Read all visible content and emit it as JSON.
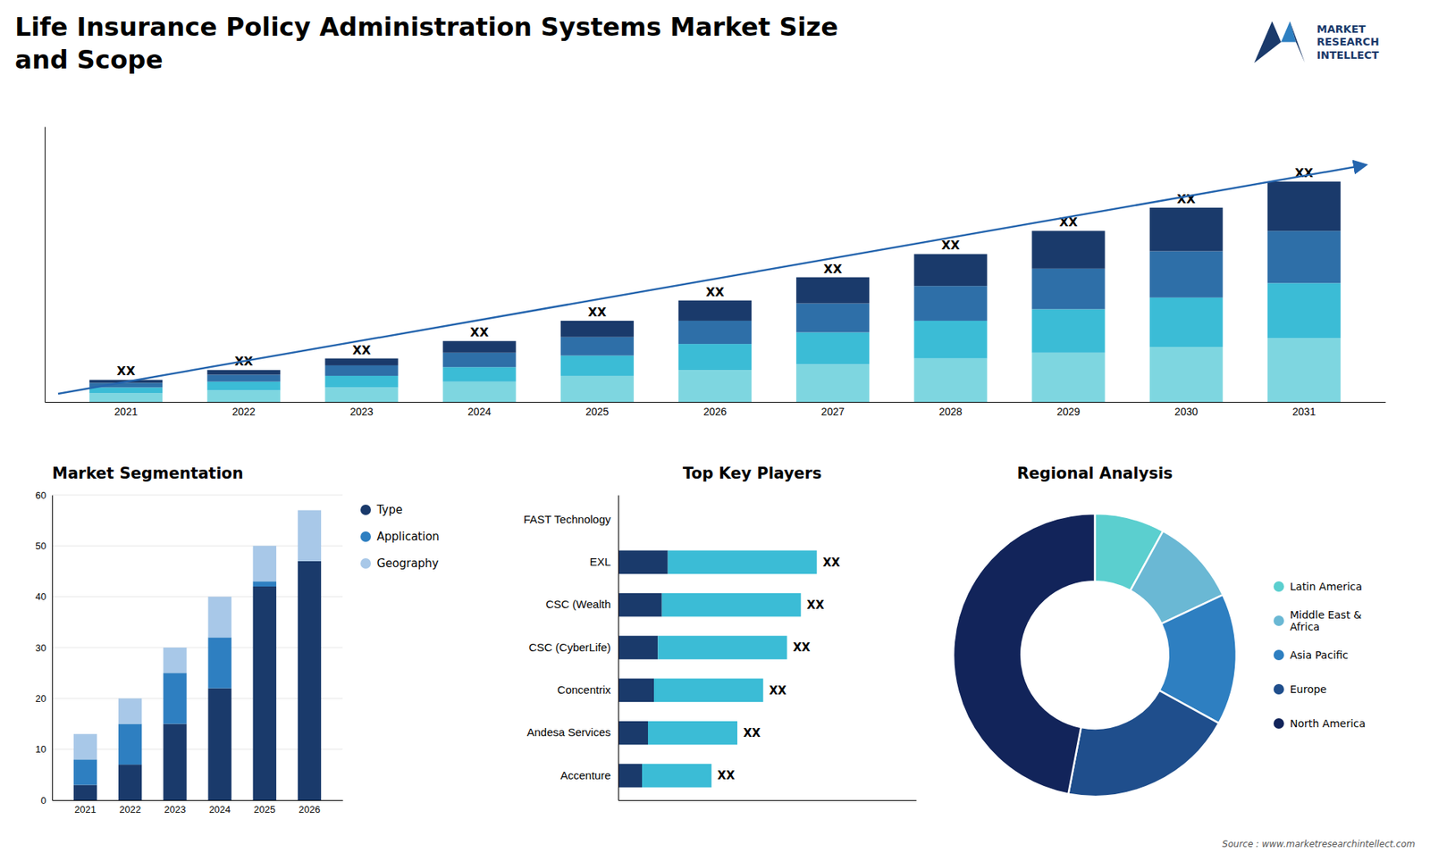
{
  "title": "Life Insurance Policy Administration Systems Market Size\nand Scope",
  "annotations": [
    "MARKET",
    "RESEARCH",
    "INTELLECT",
    "Source : www.marketresearchintellect.com"
  ],
  "chart_data": [
    {
      "type": "bar",
      "stacked": true,
      "categories": [
        "2021",
        "2022",
        "2023",
        "2024",
        "2025",
        "2026",
        "2027",
        "2028",
        "2029",
        "2030",
        "2031"
      ],
      "series": [
        {
          "color": "#7ed6e0",
          "values": [
            1.5,
            2.0,
            2.5,
            3.5,
            4.5,
            5.5,
            6.5,
            7.5,
            8.5,
            9.5,
            11.0
          ]
        },
        {
          "color": "#3bbcd6",
          "values": [
            1.0,
            1.5,
            2.0,
            2.5,
            3.5,
            4.5,
            5.5,
            6.5,
            7.5,
            8.5,
            9.5
          ]
        },
        {
          "color": "#2e6fa8",
          "values": [
            0.8,
            1.2,
            1.8,
            2.5,
            3.2,
            4.0,
            5.0,
            6.0,
            7.0,
            8.0,
            9.0
          ]
        },
        {
          "color": "#1a3a6b",
          "values": [
            0.5,
            0.8,
            1.2,
            2.0,
            2.8,
            3.5,
            4.5,
            5.5,
            6.5,
            7.5,
            8.5
          ]
        }
      ],
      "ylim": [
        0,
        47.5
      ],
      "tick_labels": "x",
      "annotations": [
        "XX",
        "XX",
        "XX",
        "XX",
        "XX",
        "XX",
        "XX",
        "XX",
        "XX",
        "XX",
        "XX"
      ]
    },
    {
      "type": "bar",
      "stacked": true,
      "title": "Market Segmentation",
      "categories": [
        "2021",
        "2022",
        "2023",
        "2024",
        "2025",
        "2026"
      ],
      "series": [
        {
          "name": "Type",
          "color": "#1a3a6b",
          "values": [
            3,
            7,
            15,
            22,
            42,
            47
          ]
        },
        {
          "name": "Application",
          "color": "#2e7fc1",
          "values": [
            5,
            8,
            10,
            10,
            1,
            0
          ]
        },
        {
          "name": "Geography",
          "color": "#a8c8e8",
          "values": [
            5,
            5,
            5,
            8,
            7,
            10
          ]
        }
      ],
      "ylim": [
        0,
        60
      ],
      "yticks": [
        0,
        10,
        20,
        30,
        40,
        50,
        60
      ],
      "grid": true,
      "legend": "right"
    },
    {
      "type": "bar",
      "orientation": "horizontal",
      "stacked": true,
      "title": "Top Key Players",
      "categories": [
        "FAST Technology",
        "EXL",
        "CSC (Wealth",
        "CSC (CyberLife)",
        "Concentrix",
        "Andesa Services",
        "Accenture"
      ],
      "series": [
        {
          "color": "#1a3a6b",
          "values": [
            0,
            2.5,
            2.2,
            2.0,
            1.8,
            1.5,
            1.2
          ]
        },
        {
          "color": "#3bbcd6",
          "values": [
            0,
            7.5,
            7.0,
            6.5,
            5.5,
            4.5,
            3.5
          ]
        }
      ],
      "xlim": [
        0,
        15
      ],
      "tick_labels": "y",
      "annotations": [
        null,
        "XX",
        "XX",
        "XX",
        "XX",
        "XX",
        "XX"
      ]
    },
    {
      "type": "donut",
      "title": "Regional Analysis",
      "categories": [
        "Latin America",
        "Middle East &\nAfrica",
        "Asia Pacific",
        "Europe",
        "North America"
      ],
      "values": [
        8,
        10,
        15,
        20,
        47
      ],
      "colors": [
        "#5bcfcf",
        "#6ab8d4",
        "#2e7fc1",
        "#1f4e8c",
        "#12245a"
      ],
      "legend": "right"
    }
  ]
}
